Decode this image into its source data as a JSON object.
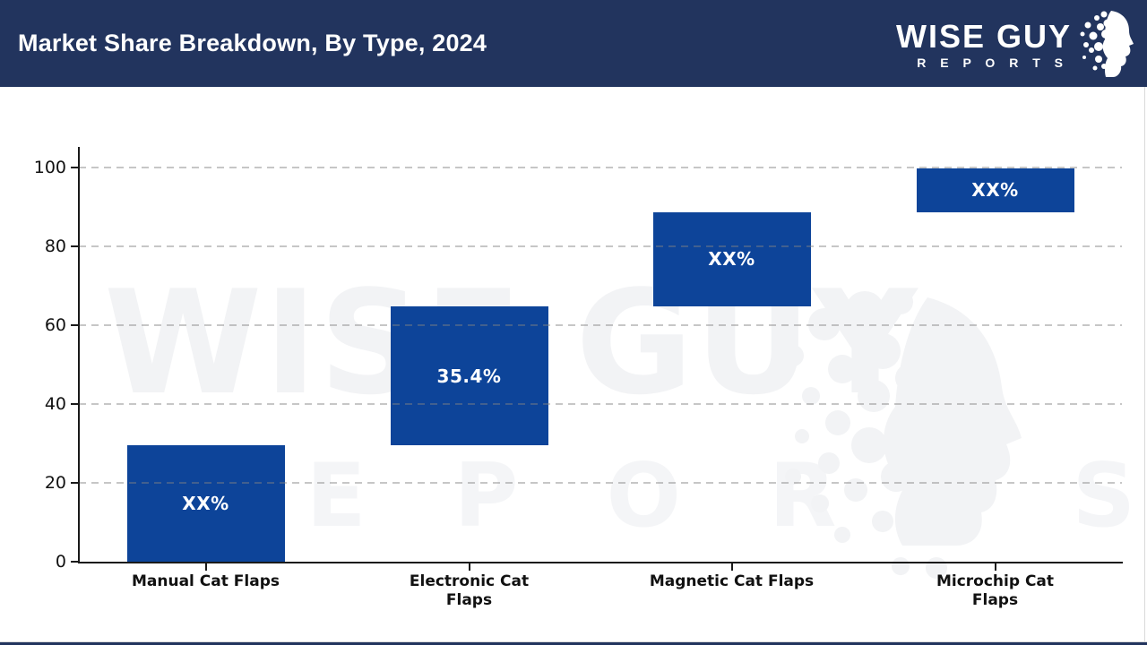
{
  "header": {
    "title": "Market Share Breakdown, By Type, 2024",
    "logo": {
      "name": "WISE GUY",
      "subname": "R E P O R T S"
    }
  },
  "watermark": {
    "line1": "WISE GUY",
    "line2": "R E P O R T S"
  },
  "chart_data": {
    "type": "bar",
    "subtype": "waterfall",
    "title": "Market Share Breakdown, By Type, 2024",
    "categories": [
      "Manual Cat Flaps",
      "Electronic Cat\nFlaps",
      "Magnetic Cat Flaps",
      "Microchip Cat\nFlaps"
    ],
    "segments": [
      {
        "category": "Manual Cat Flaps",
        "start": 0,
        "end": 29.4,
        "label": "XX%"
      },
      {
        "category": "Electronic Cat Flaps",
        "start": 29.4,
        "end": 64.8,
        "label": "35.4%"
      },
      {
        "category": "Magnetic Cat Flaps",
        "start": 64.8,
        "end": 88.6,
        "label": "XX%"
      },
      {
        "category": "Microchip Cat Flaps",
        "start": 88.6,
        "end": 99.6,
        "label": "XX%"
      }
    ],
    "yticks": [
      0,
      20,
      40,
      60,
      80,
      100
    ],
    "ylim": [
      0,
      105
    ],
    "grid": "horizontal-dashed",
    "legend": "none",
    "bar_color": "#0d4499"
  },
  "colors": {
    "header_bg": "#22345e",
    "footer_bg": "#22345e",
    "bar_blue": "#0d4499",
    "axis": "#1a1a1a",
    "watermark": "#f2f3f5"
  }
}
